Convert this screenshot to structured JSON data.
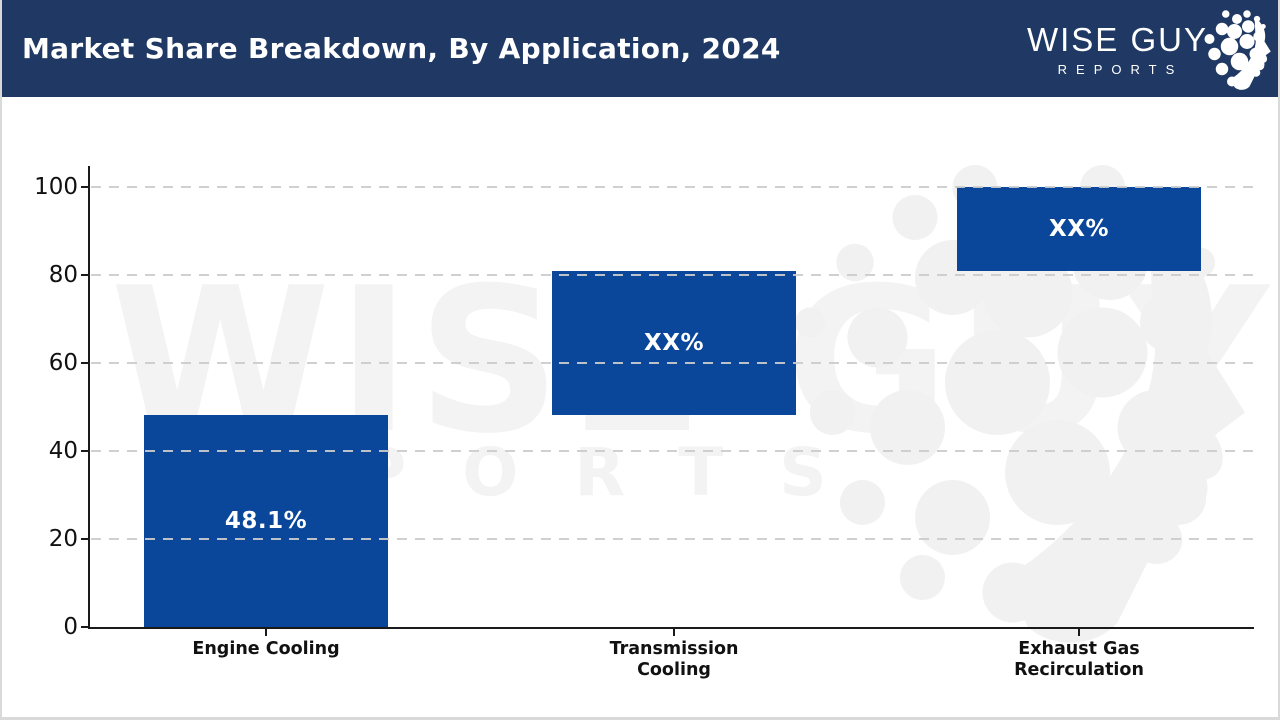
{
  "header": {
    "title": "Market Share Breakdown, By Application, 2024",
    "logo": {
      "line1": "WISE GUY",
      "line2": "REPORTS"
    }
  },
  "watermark": {
    "line1": "WISE GUY",
    "line2": "REPORTS"
  },
  "chart_data": {
    "type": "bar",
    "subtype": "waterfall",
    "title": "Market Share Breakdown, By Application, 2024",
    "categories": [
      "Engine Cooling",
      "Transmission Cooling",
      "Exhaust Gas Recirculation"
    ],
    "categories_display": [
      [
        "Engine Cooling"
      ],
      [
        "Transmission",
        "Cooling"
      ],
      [
        "Exhaust Gas",
        "Recirculation"
      ]
    ],
    "segments": [
      {
        "category": "Engine Cooling",
        "start": 0,
        "end": 48.1,
        "label": "48.1%"
      },
      {
        "category": "Transmission Cooling",
        "start": 48.1,
        "end": 80.9,
        "label": "XX%"
      },
      {
        "category": "Exhaust Gas Recirculation",
        "start": 80.9,
        "end": 100,
        "label": "XX%"
      }
    ],
    "ylim": [
      0,
      100
    ],
    "yticks": [
      0,
      20,
      40,
      60,
      80,
      100
    ],
    "xlabel": "",
    "ylabel": "",
    "grid": "horizontal-dashed",
    "legend": "none"
  },
  "colors": {
    "header_bg": "#1f3864",
    "bar": "#0a4699",
    "bar_label": "#ffffff",
    "grid": "#cccccc",
    "axis": "#1a1a1a",
    "watermark": "#f3f3f3",
    "page_border": "#d9d9d9"
  }
}
